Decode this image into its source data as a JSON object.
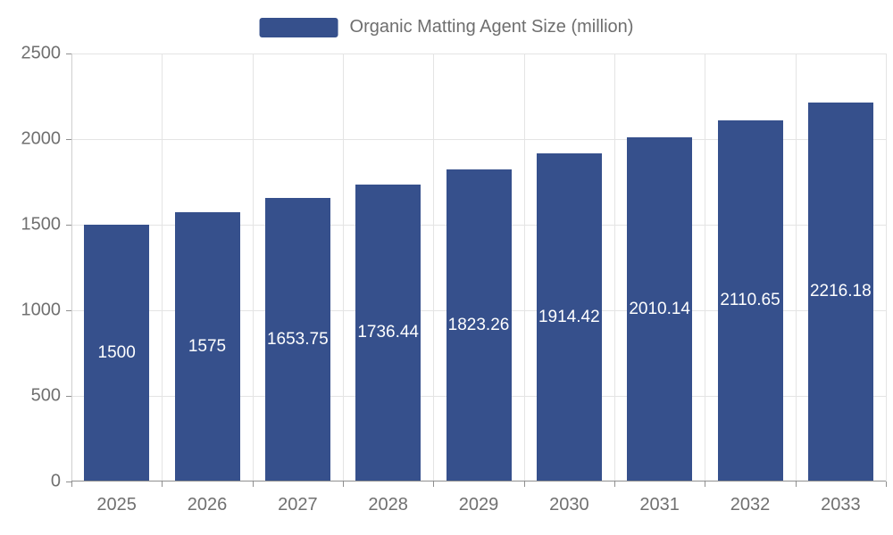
{
  "chart_data": {
    "type": "bar",
    "title": "Organic Matting Agent Size (million)",
    "categories": [
      "2025",
      "2026",
      "2027",
      "2028",
      "2029",
      "2030",
      "2031",
      "2032",
      "2033"
    ],
    "values": [
      1500,
      1575,
      1653.75,
      1736.44,
      1823.26,
      1914.42,
      2010.14,
      2110.65,
      2216.18
    ],
    "value_labels": [
      "1500",
      "1575",
      "1653.75",
      "1736.44",
      "1823.26",
      "1914.42",
      "2010.14",
      "2110.65",
      "2216.18"
    ],
    "xlabel": "",
    "ylabel": "",
    "ylim": [
      0,
      2500
    ],
    "yticks": [
      0,
      500,
      1000,
      1500,
      2000,
      2500
    ],
    "grid": true,
    "legend_position": "top",
    "bar_color": "#36508c",
    "bar_label_color": "#ffffff",
    "axis_text_color": "#707070",
    "grid_color": "#e4e4e4"
  }
}
